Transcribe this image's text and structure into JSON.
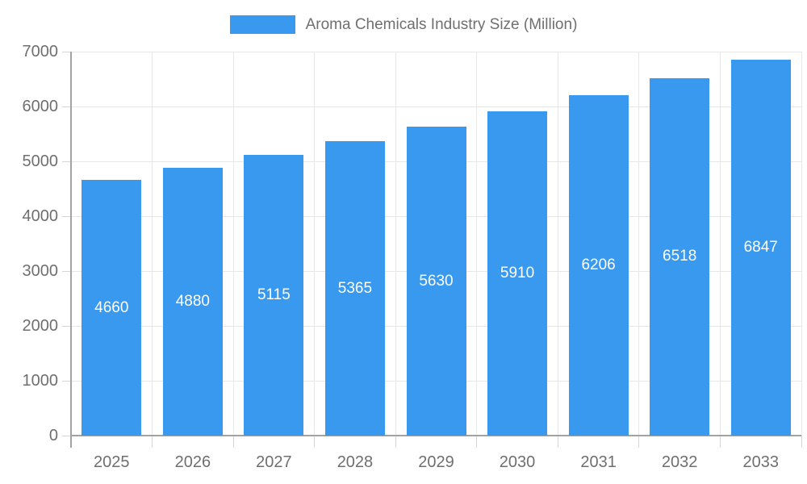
{
  "legend": {
    "label": "Aroma Chemicals Industry Size (Million)"
  },
  "chart_data": {
    "type": "bar",
    "title": "Aroma Chemicals Industry Size (Million)",
    "series_name": "Aroma Chemicals Industry Size (Million)",
    "categories": [
      "2025",
      "2026",
      "2027",
      "2028",
      "2029",
      "2030",
      "2031",
      "2032",
      "2033"
    ],
    "values": [
      4660,
      4880,
      5115,
      5365,
      5630,
      5910,
      6206,
      6518,
      6847
    ],
    "value_labels_shown": true,
    "xlabel": "",
    "ylabel": "",
    "ylim": [
      0,
      7000
    ],
    "ytick_step": 1000,
    "ytick_labels": [
      "0",
      "1000",
      "2000",
      "3000",
      "4000",
      "5000",
      "6000",
      "7000"
    ],
    "grid": true,
    "legend_position": "top-center",
    "colors": {
      "bar": "#3999ee",
      "value_label": "#ffffff",
      "axis_text": "#6f6f6f",
      "gridline": "#e7e7e7",
      "axis_line": "#a2a2a2",
      "tick": "#d6d6d6",
      "background": "#ffffff"
    }
  }
}
